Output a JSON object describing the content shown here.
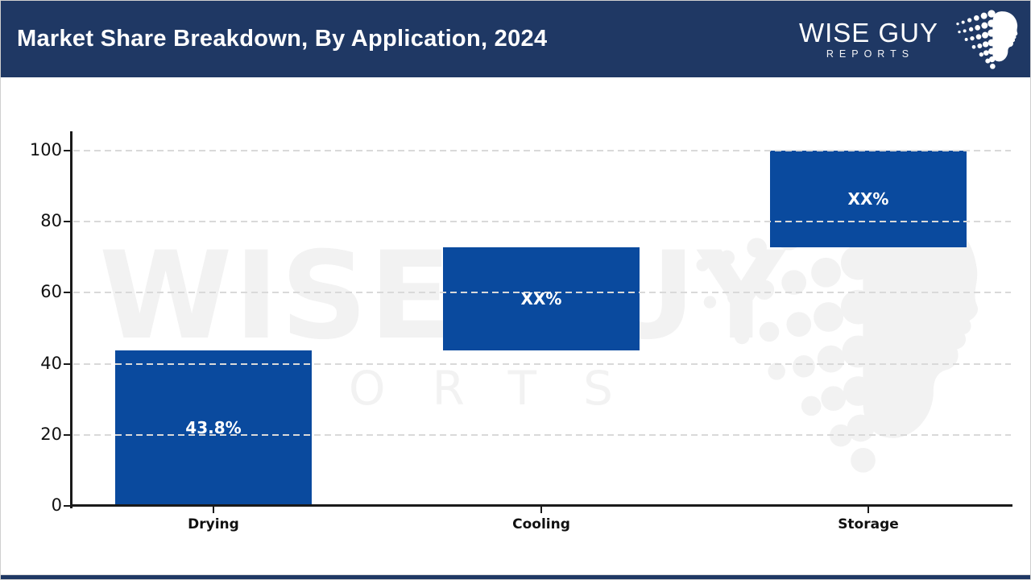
{
  "header": {
    "title": "Market Share Breakdown, By Application, 2024",
    "bg_color": "#1f3864",
    "logo": {
      "line1": "WISE GUY",
      "line2": "REPORTS"
    }
  },
  "watermark": {
    "line1": "WISE GUY",
    "line2": "REPORTS"
  },
  "chart_data": {
    "type": "bar",
    "subtype": "waterfall-breakdown",
    "title": "Market Share Breakdown, By Application, 2024",
    "categories": [
      "Drying",
      "Cooling",
      "Storage"
    ],
    "segments": [
      {
        "category": "Drying",
        "start": 0,
        "end": 43.8,
        "label": "43.8%"
      },
      {
        "category": "Cooling",
        "start": 43.8,
        "end": 72.9,
        "label": "XX%"
      },
      {
        "category": "Storage",
        "start": 72.9,
        "end": 100,
        "label": "XX%"
      }
    ],
    "yticks": [
      0,
      20,
      40,
      60,
      80,
      100
    ],
    "ylim": [
      0,
      105
    ],
    "grid": true,
    "gridline_style": "dashed",
    "bar_color": "#0a4a9e",
    "bar_label_color": "#ffffff",
    "legend": "none"
  },
  "footer": {
    "bar_color": "#1f3864"
  }
}
